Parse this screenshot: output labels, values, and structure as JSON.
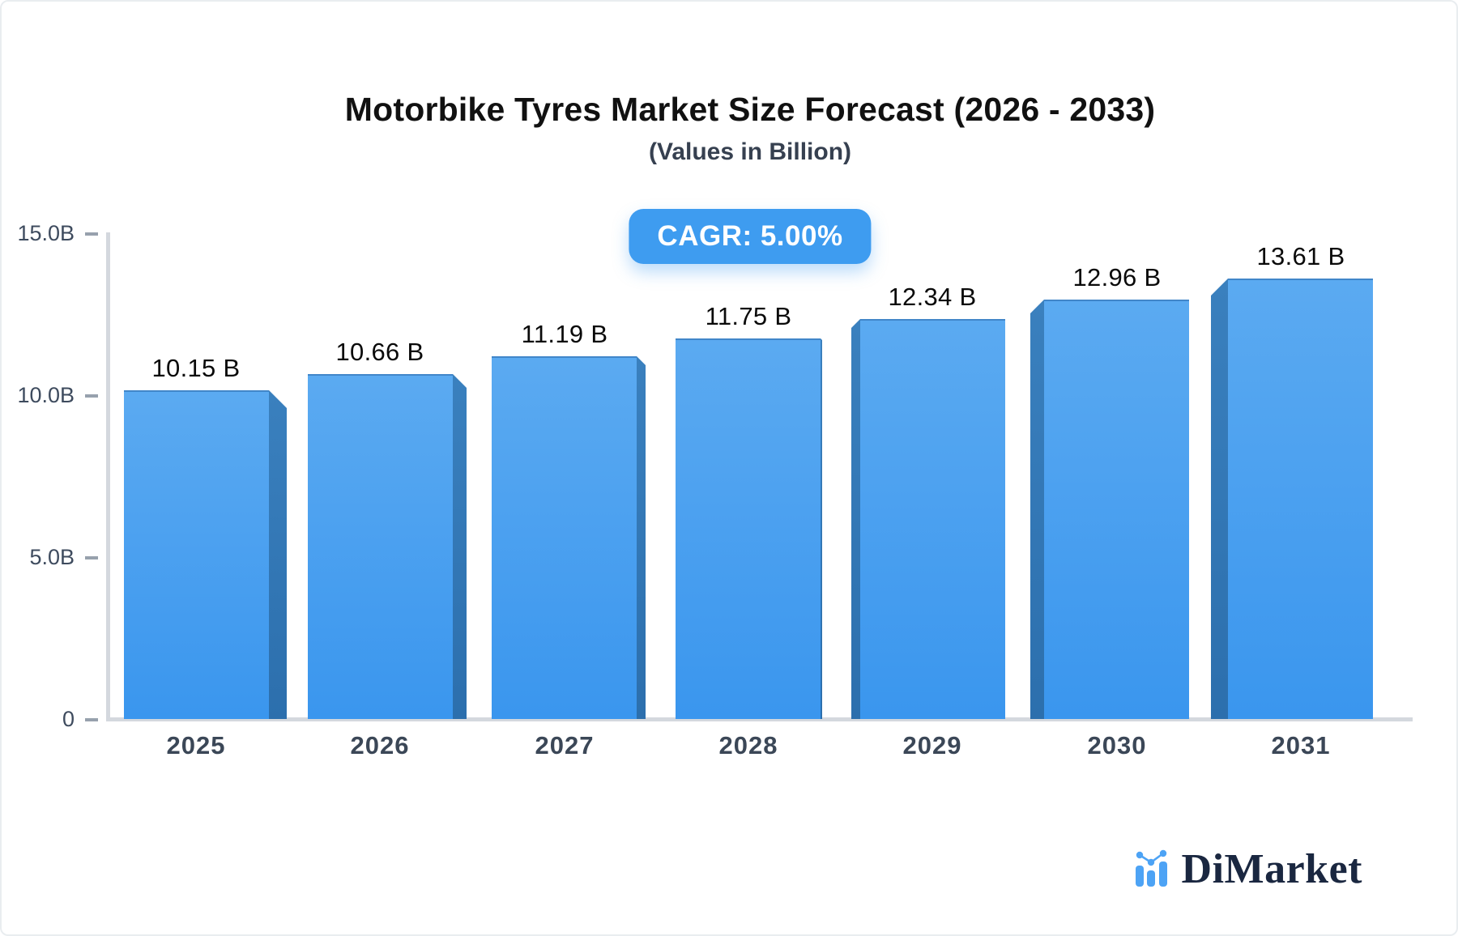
{
  "header": {
    "title": "Motorbike Tyres Market Size Forecast (2026 - 2033)",
    "subtitle": "(Values in Billion)"
  },
  "badge": {
    "label": "CAGR: 5.00%",
    "bg_color": "#3e9cf0",
    "text_color": "#ffffff"
  },
  "chart_data": {
    "type": "bar",
    "title": "Motorbike Tyres Market Size Forecast (2026 - 2033)",
    "subtitle": "(Values in Billion)",
    "unit": "Billion",
    "categories": [
      "2025",
      "2026",
      "2027",
      "2028",
      "2029",
      "2030",
      "2031"
    ],
    "values": [
      10.15,
      10.66,
      11.19,
      11.75,
      12.34,
      12.96,
      13.61
    ],
    "value_labels": [
      "10.15 B",
      "10.66 B",
      "11.19 B",
      "11.75 B",
      "12.34 B",
      "12.96 B",
      "13.61 B"
    ],
    "ylim": [
      0,
      15
    ],
    "y_ticks": [
      {
        "label": "15.0B",
        "value": 15
      },
      {
        "label": "10.0B",
        "value": 10
      },
      {
        "label": "5.0B",
        "value": 5
      },
      {
        "label": "0",
        "value": 0
      }
    ],
    "grid": false,
    "legend": false,
    "bar_style_3d": true,
    "colors": {
      "front_top": "#5baaf1",
      "front_bottom": "#3a96ee",
      "side_top": "#3a80be",
      "side_bottom": "#2c6fad",
      "top_edge": "#4186c9",
      "axis": "#d4d8de",
      "tick": "#97a1ad",
      "tick_text": "#3e4b5e",
      "value_text": "#0a0a0a"
    }
  },
  "logo": {
    "brand": "DiMarket",
    "icon": "mini-bar-chart-icon",
    "icon_color": "#4da3f5",
    "text_color": "#1a2740"
  }
}
